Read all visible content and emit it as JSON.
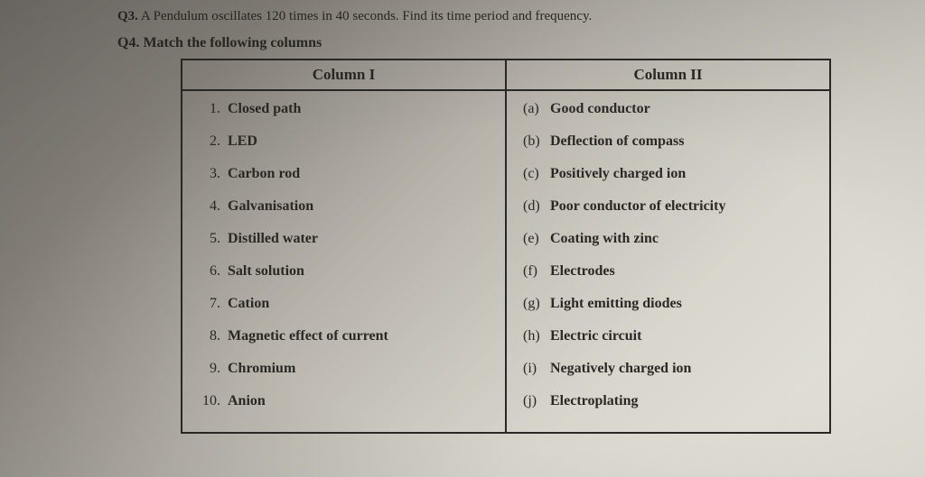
{
  "q3": {
    "label": "Q3.",
    "text": "A Pendulum oscillates 120 times in 40 seconds. Find its time period and frequency."
  },
  "q4": {
    "label": "Q4.",
    "text": "Match the following columns"
  },
  "table": {
    "header_left": "Column I",
    "header_right": "Column II",
    "left": [
      {
        "n": "1.",
        "t": "Closed path"
      },
      {
        "n": "2.",
        "t": "LED"
      },
      {
        "n": "3.",
        "t": "Carbon rod"
      },
      {
        "n": "4.",
        "t": "Galvanisation"
      },
      {
        "n": "5.",
        "t": "Distilled water"
      },
      {
        "n": "6.",
        "t": "Salt solution"
      },
      {
        "n": "7.",
        "t": "Cation"
      },
      {
        "n": "8.",
        "t": "Magnetic effect of current"
      },
      {
        "n": "9.",
        "t": "Chromium"
      },
      {
        "n": "10.",
        "t": "Anion"
      }
    ],
    "right": [
      {
        "n": "(a)",
        "t": "Good conductor"
      },
      {
        "n": "(b)",
        "t": "Deflection of compass"
      },
      {
        "n": "(c)",
        "t": "Positively charged ion"
      },
      {
        "n": "(d)",
        "t": "Poor conductor of electricity"
      },
      {
        "n": "(e)",
        "t": "Coating with zinc"
      },
      {
        "n": "(f)",
        "t": "Electrodes"
      },
      {
        "n": "(g)",
        "t": "Light emitting diodes"
      },
      {
        "n": "(h)",
        "t": "Electric circuit"
      },
      {
        "n": "(i)",
        "t": "Negatively charged ion"
      },
      {
        "n": "(j)",
        "t": "Electroplating"
      }
    ]
  },
  "colors": {
    "text": "#2a2824",
    "border": "#2a2824"
  }
}
